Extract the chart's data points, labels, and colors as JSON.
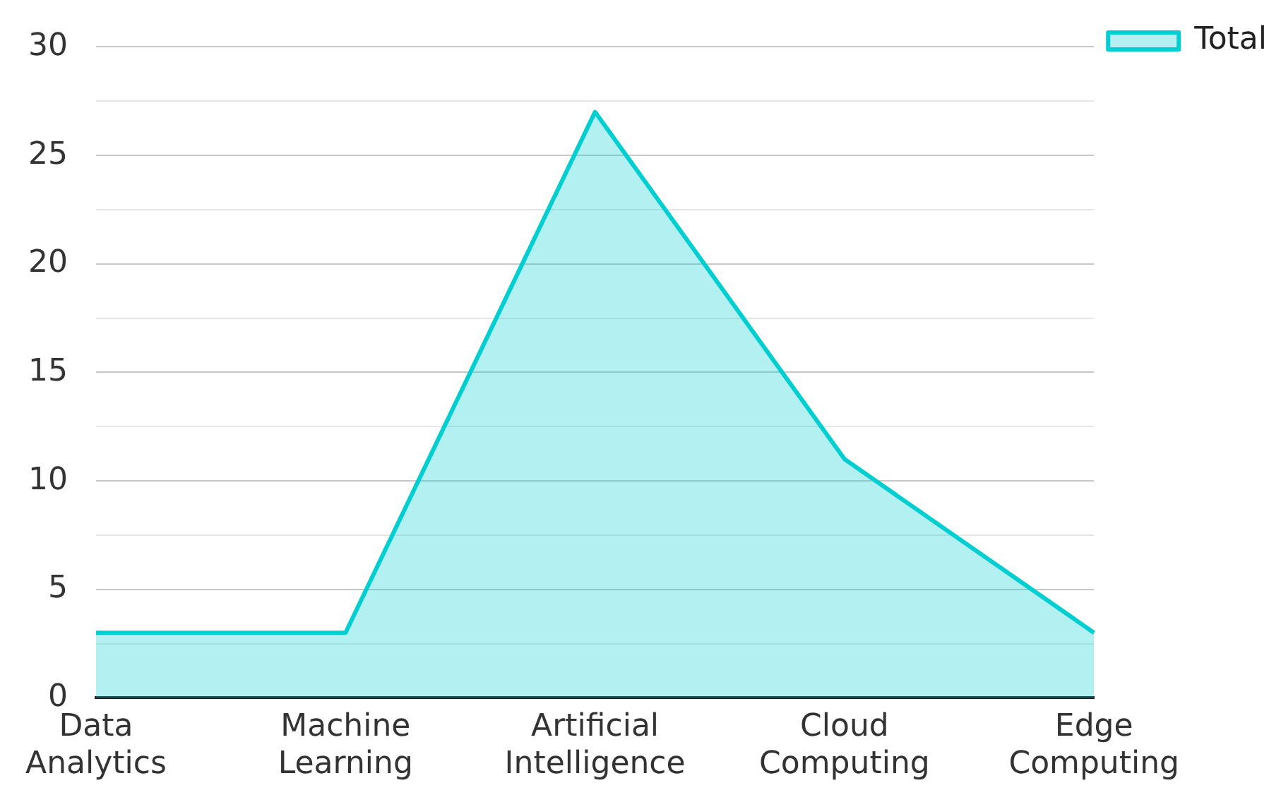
{
  "chart_data": {
    "type": "area",
    "categories": [
      "Data Analytics",
      "Machine Learning",
      "Artificial Intelligence",
      "Cloud Computing",
      "Edge Computing"
    ],
    "series": [
      {
        "name": "Total",
        "color": "#00ced1",
        "values": [
          3,
          3,
          27,
          11,
          3
        ]
      }
    ],
    "ylim": [
      0,
      30
    ],
    "yticks": [
      0,
      {
        "value": 2.5,
        "label": null
      },
      5,
      {
        "value": 7.5,
        "label": null
      },
      10,
      {
        "value": 12.5,
        "label": null
      },
      15,
      {
        "value": 17.5,
        "label": null
      },
      20,
      {
        "value": 22.5,
        "label": null
      },
      25,
      {
        "value": 27.5,
        "label": null
      },
      30
    ],
    "grid": "y",
    "legend": "top right"
  }
}
